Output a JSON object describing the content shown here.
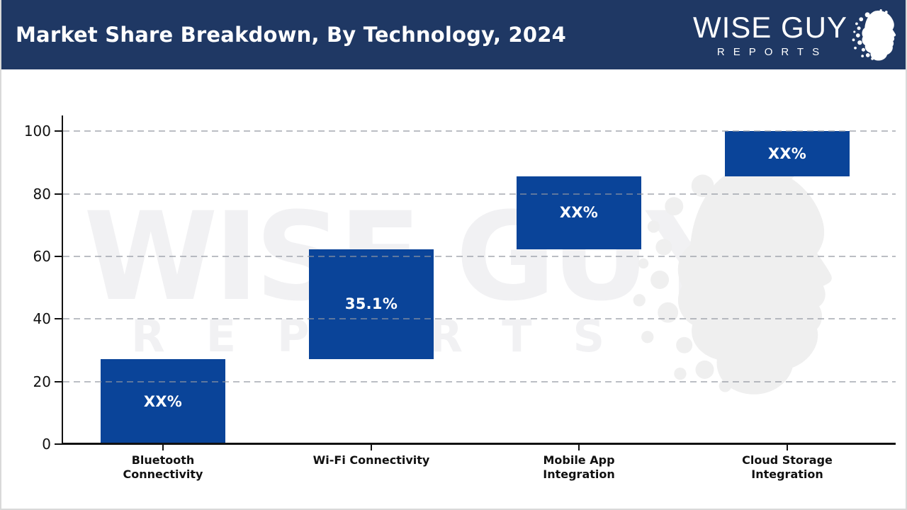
{
  "header": {
    "title": "Market Share Breakdown, By Technology, 2024",
    "bg_color": "#1f3864",
    "logo": {
      "name": "WISE GUY",
      "subtitle": "REPORTS"
    }
  },
  "watermark": {
    "line1": "WISE GUY",
    "line2": "REPORTS"
  },
  "chart_data": {
    "type": "bar",
    "subtype": "waterfall-floating-segments",
    "title": "Market Share Breakdown, By Technology, 2024",
    "categories": [
      "Bluetooth Connectivity",
      "Wi-Fi Connectivity",
      "Mobile App Integration",
      "Cloud Storage Integration"
    ],
    "category_labels": [
      "Bluetooth\nConnectivity",
      "Wi-Fi Connectivity",
      "Mobile App\nIntegration",
      "Cloud Storage\nIntegration"
    ],
    "segments": [
      {
        "category": "Bluetooth Connectivity",
        "start": 0,
        "end": 27.2,
        "value_label": "XX%"
      },
      {
        "category": "Wi-Fi Connectivity",
        "start": 27.2,
        "end": 62.3,
        "value_label": "35.1%"
      },
      {
        "category": "Mobile App Integration",
        "start": 62.3,
        "end": 85.6,
        "value_label": "XX%"
      },
      {
        "category": "Cloud Storage Integration",
        "start": 85.6,
        "end": 100,
        "value_label": "XX%"
      }
    ],
    "yticks": [
      0,
      20,
      40,
      60,
      80,
      100
    ],
    "ylim": [
      0,
      100
    ],
    "grid": "horizontal-dashed-over-bars",
    "legend": "none",
    "bar_color": "#0a4499",
    "bar_label_color": "#ffffff"
  }
}
